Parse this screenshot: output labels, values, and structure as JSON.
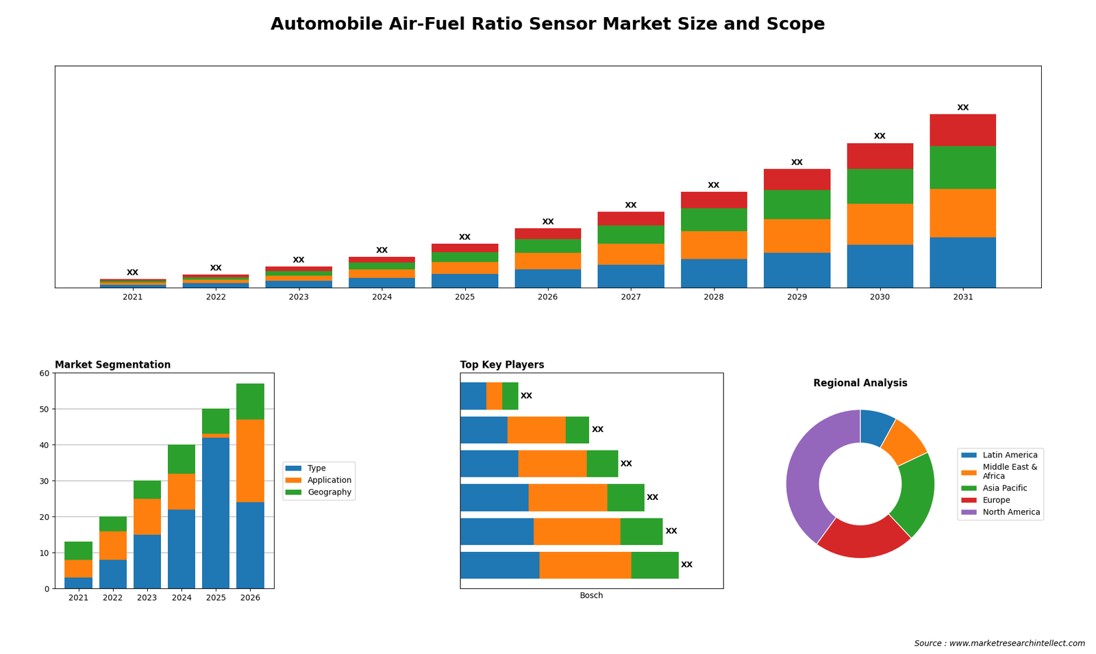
{
  "title": "Automobile Air-Fuel Ratio Sensor Market Size and Scope",
  "annotations": [
    "Source : www.marketresearchintellect.com"
  ],
  "chart_data": [
    {
      "type": "bar",
      "stacked": true,
      "categories": [
        "2021",
        "2022",
        "2023",
        "2024",
        "2025",
        "2026",
        "2027",
        "2028",
        "2029",
        "2030",
        "2031"
      ],
      "series": [
        {
          "color": "#1f77b4",
          "values": [
            1.0,
            1.5,
            2.2,
            3.2,
            4.5,
            6.0,
            7.5,
            9.5,
            11.5,
            14.0,
            16.5
          ]
        },
        {
          "color": "#ff7f0e",
          "values": [
            0.8,
            1.2,
            1.8,
            2.8,
            4.0,
            5.5,
            7.0,
            9.0,
            11.0,
            13.5,
            16.0
          ]
        },
        {
          "color": "#2ca02c",
          "values": [
            0.5,
            0.8,
            1.5,
            2.2,
            3.2,
            4.5,
            6.0,
            7.5,
            9.5,
            11.5,
            14.0
          ]
        },
        {
          "color": "#d62728",
          "values": [
            0.5,
            0.8,
            1.5,
            2.0,
            2.8,
            3.5,
            4.5,
            5.5,
            7.0,
            8.5,
            10.5
          ],
          "value_labels": [
            "XX",
            "XX",
            "XX",
            "XX",
            "XX",
            "XX",
            "XX",
            "XX",
            "XX",
            "XX",
            "XX"
          ]
        }
      ],
      "data_labels": true,
      "ylim": [
        0,
        72.96
      ],
      "tick_labels": "x",
      "grid": false
    },
    {
      "type": "bar",
      "stacked": true,
      "title": "Market Segmentation",
      "categories": [
        "2021",
        "2022",
        "2023",
        "2024",
        "2025",
        "2026"
      ],
      "series": [
        {
          "name": "Type",
          "color": "#1f77b4",
          "values": [
            3,
            8,
            15,
            22,
            42,
            24
          ]
        },
        {
          "name": "Application",
          "color": "#ff7f0e",
          "values": [
            5,
            8,
            10,
            10,
            1,
            23
          ]
        },
        {
          "name": "Geography",
          "color": "#2ca02c",
          "values": [
            5,
            4,
            5,
            8,
            7,
            10
          ]
        }
      ],
      "ylim": [
        0,
        60
      ],
      "yticks": [
        0,
        10,
        20,
        30,
        40,
        50,
        60
      ],
      "grid": true,
      "legend": "center left"
    },
    {
      "type": "bar",
      "orientation": "horizontal",
      "stacked": true,
      "title": "Top Key Players",
      "xlabel": "Bosch",
      "categories": [
        null,
        null,
        null,
        null,
        null,
        null
      ],
      "series": [
        {
          "color": "#1f77b4",
          "values": [
            0.3,
            0.28,
            0.26,
            0.22,
            0.18,
            0.1
          ]
        },
        {
          "color": "#ff7f0e",
          "values": [
            0.35,
            0.33,
            0.3,
            0.26,
            0.22,
            0.06
          ]
        },
        {
          "color": "#2ca02c",
          "values": [
            0.18,
            0.16,
            0.14,
            0.12,
            0.09,
            0.06
          ],
          "value_labels": [
            "XX",
            "XX",
            "XX",
            "XX",
            "XX",
            "XX"
          ]
        }
      ],
      "xlim": [
        0,
        1.0
      ],
      "tick_labels": false,
      "data_labels": true,
      "grid": false
    },
    {
      "type": "donut",
      "title": "Regional Analysis",
      "categories": [
        "Latin America",
        "Middle East &\nAfrica",
        "Asia Pacific",
        "Europe",
        "North America"
      ],
      "values": [
        8,
        10,
        20,
        22,
        40
      ],
      "colors": [
        "#1f77b4",
        "#ff7f0e",
        "#2ca02c",
        "#d62728",
        "#9467bd"
      ],
      "legend": "center left"
    }
  ]
}
